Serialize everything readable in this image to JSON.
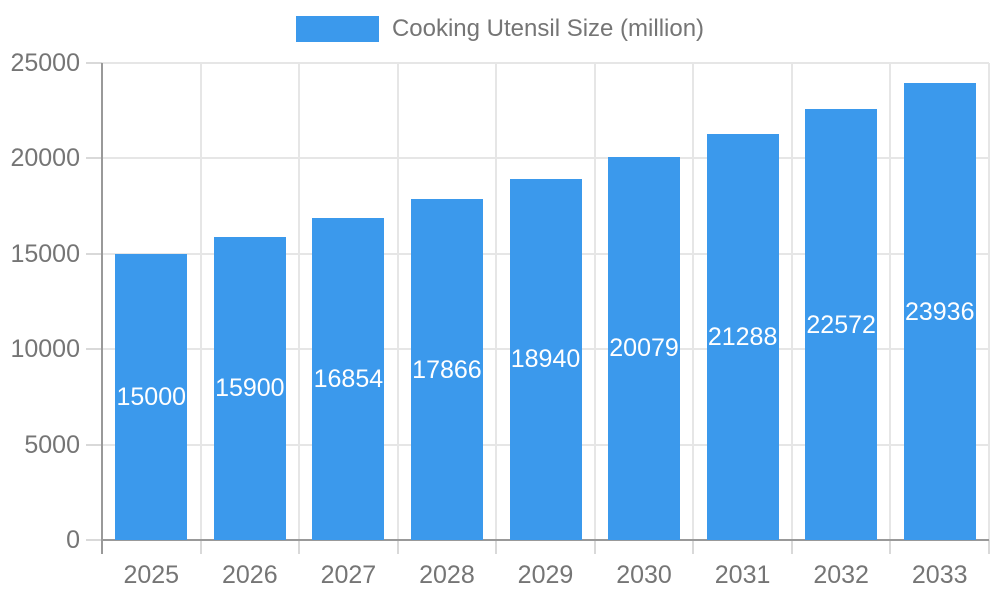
{
  "chart_data": {
    "type": "bar",
    "title": "Cooking Utensil Size (million)",
    "legend": {
      "position": "top",
      "label": "Cooking Utensil Size (million)"
    },
    "categories": [
      "2025",
      "2026",
      "2027",
      "2028",
      "2029",
      "2030",
      "2031",
      "2032",
      "2033"
    ],
    "series": [
      {
        "name": "Cooking Utensil Size (million)",
        "values": [
          15000,
          15900,
          16854,
          17866,
          18940,
          20079,
          21288,
          22572,
          23936
        ]
      }
    ],
    "xlabel": "",
    "ylabel": "",
    "ylim": [
      0,
      25000
    ],
    "yticks": [
      0,
      5000,
      10000,
      15000,
      20000,
      25000
    ],
    "grid": true,
    "bar_value_labels": [
      "15000",
      "15900",
      "16854",
      "17866",
      "18940",
      "20079",
      "21288",
      "22572",
      "23936"
    ],
    "colors": {
      "bar": "#3b99ec",
      "bar_label": "#ffffff",
      "axis": "#999999",
      "grid": "#e6e6e6",
      "tick": "#d9d9d9",
      "text": "#757575",
      "background": "#ffffff"
    }
  }
}
